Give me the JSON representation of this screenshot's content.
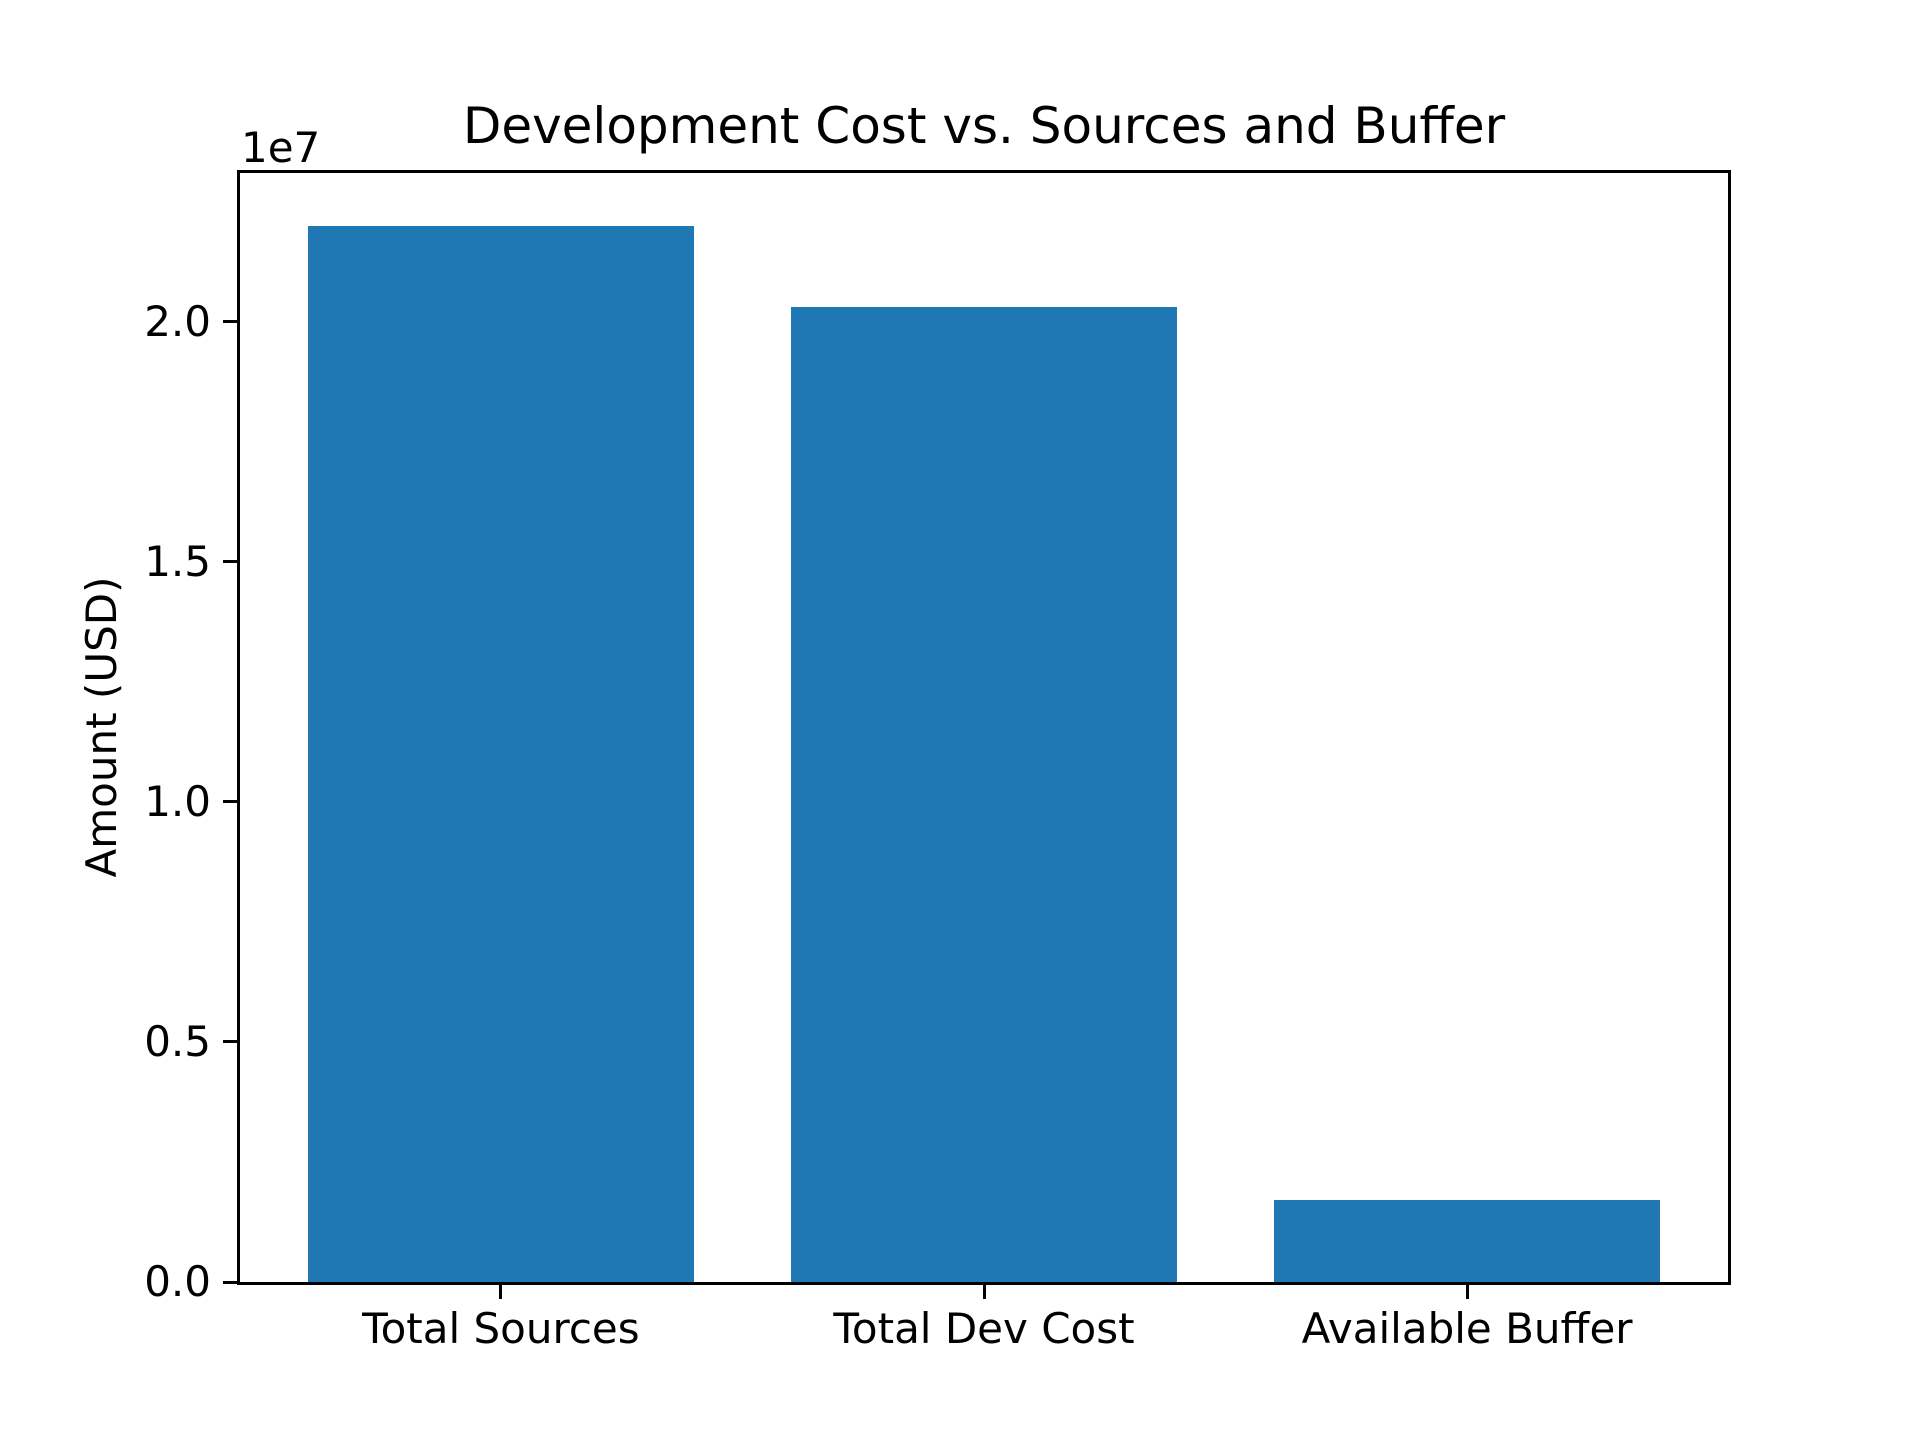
{
  "figure": {
    "title": "Development Cost vs. Sources and Buffer",
    "ylabel": "Amount (USD)",
    "offset_text": "1e7"
  },
  "colors": {
    "bar": "#1f77b4",
    "spine": "#000000",
    "background": "#ffffff",
    "text": "#000000"
  },
  "chart_data": {
    "type": "bar",
    "title": "Development Cost vs. Sources and Buffer",
    "xlabel": "",
    "ylabel": "Amount (USD)",
    "categories": [
      "Total Sources",
      "Total Dev Cost",
      "Available Buffer"
    ],
    "values": [
      22000000,
      20300000,
      1700000
    ],
    "bar_color": "#1f77b4",
    "bar_width": 0.8,
    "xlim": [
      -0.54,
      2.54
    ],
    "ylim": [
      0,
      23100000
    ],
    "yticks": {
      "values": [
        0,
        5000000,
        10000000,
        15000000,
        20000000
      ],
      "labels": [
        "0.0",
        "0.5",
        "1.0",
        "1.5",
        "2.0"
      ]
    },
    "offset_text": "1e7",
    "grid": false,
    "legend": null
  }
}
